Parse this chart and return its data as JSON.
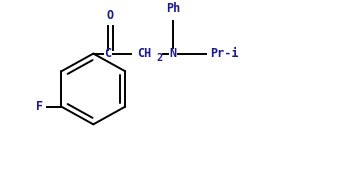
{
  "bg_color": "#ffffff",
  "line_color": "#000000",
  "text_color": "#1a1a8c",
  "font_family": "monospace",
  "font_size": 8.5,
  "fig_width": 3.39,
  "fig_height": 1.69,
  "dpi": 100,
  "F_label": "F",
  "O_label": "O",
  "C_label": "C",
  "CH2_label": "CH",
  "sub2_label": "2",
  "N_label": "N",
  "Ph_label": "Ph",
  "Pri_label": "Pr-i",
  "lw": 1.4
}
